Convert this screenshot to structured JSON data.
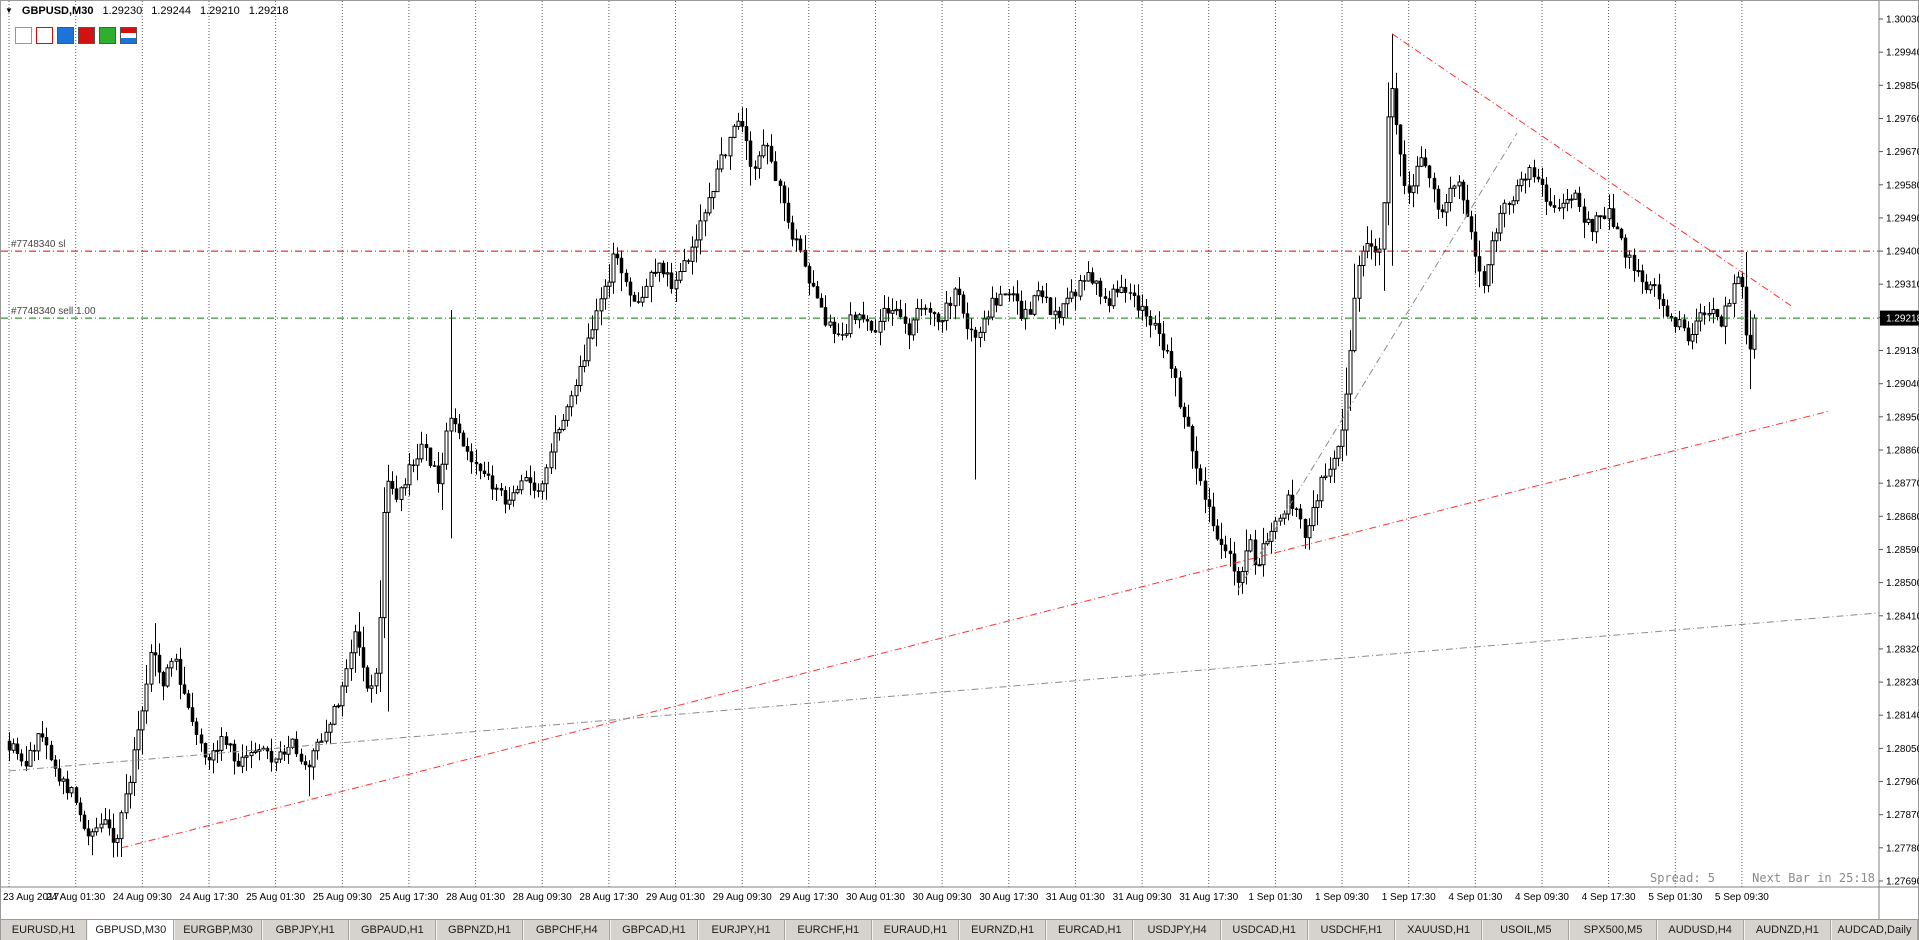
{
  "window": {
    "dropdown_glyph": "▼",
    "symbol_title": "GBPUSD,M30",
    "ohlc": {
      "open": "1.29230",
      "high": "1.29244",
      "low": "1.29210",
      "close": "1.29218"
    }
  },
  "toolbar_icons": [
    {
      "name": "white-square-icon",
      "fill": "#ffffff",
      "border": "#7f9db9"
    },
    {
      "name": "red-outline-square-icon",
      "fill": "#ffffff",
      "border": "#cc1111"
    },
    {
      "name": "blue-square-icon",
      "fill": "#1c74d9",
      "border": "#555555"
    },
    {
      "name": "red-square-icon",
      "fill": "#d41111",
      "border": "#555555"
    },
    {
      "name": "green-square-icon",
      "fill": "#2fae2f",
      "border": "#555555"
    },
    {
      "name": "striped-square-icon",
      "fill": "striped",
      "border": "#555555",
      "stripes": [
        "#d41111",
        "#ffffff",
        "#1c74d9"
      ]
    }
  ],
  "chart_data": {
    "type": "candlestick",
    "symbol": "GBPUSD",
    "timeframe": "M30",
    "bars_per_gridline": 16,
    "visible_bars": 420,
    "current_price": "1.29218",
    "x_labels": [
      "23 Aug 2017",
      "24 Aug 01:30",
      "24 Aug 09:30",
      "24 Aug 17:30",
      "25 Aug 01:30",
      "25 Aug 09:30",
      "25 Aug 17:30",
      "28 Aug 01:30",
      "28 Aug 09:30",
      "28 Aug 17:30",
      "29 Aug 01:30",
      "29 Aug 09:30",
      "29 Aug 17:30",
      "30 Aug 01:30",
      "30 Aug 09:30",
      "30 Aug 17:30",
      "31 Aug 01:30",
      "31 Aug 09:30",
      "31 Aug 17:30",
      "1 Sep 01:30",
      "1 Sep 09:30",
      "1 Sep 17:30",
      "4 Sep 01:30",
      "4 Sep 09:30",
      "4 Sep 17:30",
      "5 Sep 01:30",
      "5 Sep 09:30"
    ],
    "y_axis": {
      "top_price": 1.3003,
      "bottom_price": 1.2769,
      "step": 0.0009,
      "ticks": [
        "1.30030",
        "1.29940",
        "1.29850",
        "1.29760",
        "1.29670",
        "1.29580",
        "1.29490",
        "1.29400",
        "1.29310",
        "1.29220",
        "1.29130",
        "1.29040",
        "1.28950",
        "1.28860",
        "1.28770",
        "1.28680",
        "1.28590",
        "1.28500",
        "1.28410",
        "1.28320",
        "1.28230",
        "1.28140",
        "1.28050",
        "1.27960",
        "1.27870",
        "1.27780",
        "1.27690"
      ]
    },
    "anchors": [
      [
        0,
        1.2807
      ],
      [
        4,
        1.28
      ],
      [
        8,
        1.2809
      ],
      [
        12,
        1.2798
      ],
      [
        16,
        1.2792
      ],
      [
        20,
        1.278
      ],
      [
        23,
        1.2786
      ],
      [
        26,
        1.2779
      ],
      [
        29,
        1.2794
      ],
      [
        32,
        1.2812
      ],
      [
        35,
        1.2835
      ],
      [
        37,
        1.2822
      ],
      [
        40,
        1.283
      ],
      [
        44,
        1.2815
      ],
      [
        48,
        1.2803
      ],
      [
        52,
        1.2808
      ],
      [
        56,
        1.28
      ],
      [
        60,
        1.2806
      ],
      [
        64,
        1.2801
      ],
      [
        68,
        1.2807
      ],
      [
        72,
        1.2799
      ],
      [
        76,
        1.281
      ],
      [
        80,
        1.2818
      ],
      [
        84,
        1.2838
      ],
      [
        86,
        1.2824
      ],
      [
        88,
        1.2819
      ],
      [
        89,
        1.2828
      ],
      [
        91,
        1.288
      ],
      [
        94,
        1.2872
      ],
      [
        96,
        1.2879
      ],
      [
        100,
        1.2888
      ],
      [
        104,
        1.2876
      ],
      [
        106,
        1.2895
      ],
      [
        108,
        1.289
      ],
      [
        112,
        1.2884
      ],
      [
        116,
        1.2877
      ],
      [
        120,
        1.2872
      ],
      [
        124,
        1.2879
      ],
      [
        128,
        1.2874
      ],
      [
        132,
        1.2891
      ],
      [
        136,
        1.2903
      ],
      [
        140,
        1.2916
      ],
      [
        144,
        1.2931
      ],
      [
        146,
        1.2939
      ],
      [
        148,
        1.2931
      ],
      [
        152,
        1.2926
      ],
      [
        156,
        1.2937
      ],
      [
        160,
        1.2931
      ],
      [
        164,
        1.294
      ],
      [
        168,
        1.2952
      ],
      [
        172,
        1.2966
      ],
      [
        176,
        1.2976
      ],
      [
        179,
        1.2962
      ],
      [
        182,
        1.2971
      ],
      [
        185,
        1.2958
      ],
      [
        188,
        1.2946
      ],
      [
        192,
        1.2935
      ],
      [
        196,
        1.2922
      ],
      [
        200,
        1.2916
      ],
      [
        204,
        1.2924
      ],
      [
        208,
        1.2918
      ],
      [
        212,
        1.2925
      ],
      [
        216,
        1.2918
      ],
      [
        220,
        1.2926
      ],
      [
        224,
        1.2921
      ],
      [
        228,
        1.2929
      ],
      [
        232,
        1.2916
      ],
      [
        236,
        1.2925
      ],
      [
        240,
        1.293
      ],
      [
        244,
        1.2922
      ],
      [
        248,
        1.2929
      ],
      [
        252,
        1.2921
      ],
      [
        256,
        1.2928
      ],
      [
        260,
        1.2934
      ],
      [
        264,
        1.2926
      ],
      [
        268,
        1.2931
      ],
      [
        272,
        1.2925
      ],
      [
        276,
        1.292
      ],
      [
        280,
        1.2906
      ],
      [
        284,
        1.2889
      ],
      [
        288,
        1.2872
      ],
      [
        292,
        1.2859
      ],
      [
        296,
        1.2851
      ],
      [
        298,
        1.2863
      ],
      [
        300,
        1.2854
      ],
      [
        304,
        1.2866
      ],
      [
        308,
        1.2873
      ],
      [
        312,
        1.2863
      ],
      [
        316,
        1.2879
      ],
      [
        320,
        1.2887
      ],
      [
        322,
        1.2905
      ],
      [
        324,
        1.2933
      ],
      [
        327,
        1.2944
      ],
      [
        330,
        1.2938
      ],
      [
        332,
        1.2988
      ],
      [
        334,
        1.2968
      ],
      [
        336,
        1.2956
      ],
      [
        340,
        1.2965
      ],
      [
        344,
        1.2951
      ],
      [
        348,
        1.2959
      ],
      [
        352,
        1.2944
      ],
      [
        354,
        1.293
      ],
      [
        358,
        1.2949
      ],
      [
        362,
        1.2956
      ],
      [
        366,
        1.2963
      ],
      [
        368,
        1.2958
      ],
      [
        372,
        1.2951
      ],
      [
        376,
        1.2956
      ],
      [
        380,
        1.2946
      ],
      [
        384,
        1.2951
      ],
      [
        388,
        1.2941
      ],
      [
        392,
        1.2933
      ],
      [
        396,
        1.2929
      ],
      [
        400,
        1.2921
      ],
      [
        404,
        1.2917
      ],
      [
        408,
        1.2925
      ],
      [
        412,
        1.2921
      ],
      [
        415,
        1.2933
      ],
      [
        417,
        1.2928
      ],
      [
        418,
        1.2906
      ],
      [
        419,
        1.29218
      ]
    ],
    "spikes": [
      {
        "bar": 20,
        "low": 1.2776
      },
      {
        "bar": 26,
        "low": 1.2777
      },
      {
        "bar": 35,
        "high": 1.2839
      },
      {
        "bar": 72,
        "low": 1.2792
      },
      {
        "bar": 84,
        "high": 1.2842
      },
      {
        "bar": 91,
        "low": 1.2815,
        "high": 1.2882
      },
      {
        "bar": 106,
        "low": 1.2862,
        "high": 1.2924
      },
      {
        "bar": 146,
        "high": 1.2941
      },
      {
        "bar": 176,
        "high": 1.2979
      },
      {
        "bar": 232,
        "low": 1.2878
      },
      {
        "bar": 296,
        "low": 1.2847
      },
      {
        "bar": 332,
        "high": 1.2999,
        "low": 1.2936
      },
      {
        "bar": 418,
        "low": 1.2903
      }
    ],
    "order_lines": [
      {
        "label": "#7748340 sl",
        "price": 1.294,
        "color": "#e00000"
      },
      {
        "label": "#7748340 sell 1.00",
        "price": 1.29218,
        "color": "#008000"
      }
    ],
    "trend_lines": [
      {
        "name": "ascending-support-red",
        "from": [
          27,
          1.2778
        ],
        "to": [
          437,
          1.28966
        ],
        "color": "#ff3030"
      },
      {
        "name": "descending-resistance-red",
        "from": [
          332,
          1.2999
        ],
        "to": [
          428,
          1.2925
        ],
        "color": "#ff3030"
      },
      {
        "name": "steep-channel-gray",
        "from": [
          295,
          1.2848
        ],
        "to": [
          362,
          1.2972
        ],
        "color": "#8a8a8a"
      },
      {
        "name": "shallow-channel-gray",
        "from": [
          0,
          1.27989
        ],
        "to": [
          449,
          1.28418
        ],
        "color": "#8a8a8a"
      }
    ],
    "status": {
      "spread": "Spread: 5",
      "next_bar": "Next Bar in 25:18"
    }
  },
  "tabbar": {
    "tabs": [
      {
        "label": "EURUSD,H1",
        "active": false
      },
      {
        "label": "GBPUSD,M30",
        "active": true
      },
      {
        "label": "EURGBP,M30",
        "active": false
      },
      {
        "label": "GBPJPY,H1",
        "active": false
      },
      {
        "label": "GBPAUD,H1",
        "active": false
      },
      {
        "label": "GBPNZD,H1",
        "active": false
      },
      {
        "label": "GBPCHF,H4",
        "active": false
      },
      {
        "label": "GBPCAD,H1",
        "active": false
      },
      {
        "label": "EURJPY,H1",
        "active": false
      },
      {
        "label": "EURCHF,H1",
        "active": false
      },
      {
        "label": "EURAUD,H1",
        "active": false
      },
      {
        "label": "EURNZD,H1",
        "active": false
      },
      {
        "label": "EURCAD,H1",
        "active": false
      },
      {
        "label": "USDJPY,H4",
        "active": false
      },
      {
        "label": "USDCAD,H1",
        "active": false
      },
      {
        "label": "USDCHF,H1",
        "active": false
      },
      {
        "label": "XAUUSD,H1",
        "active": false
      },
      {
        "label": "USOIL,M5",
        "active": false
      },
      {
        "label": "SPX500,M5",
        "active": false
      },
      {
        "label": "AUDUSD,H4",
        "active": false
      },
      {
        "label": "AUDNZD,H1",
        "active": false
      },
      {
        "label": "AUDCAD,Daily",
        "active": false
      }
    ]
  }
}
